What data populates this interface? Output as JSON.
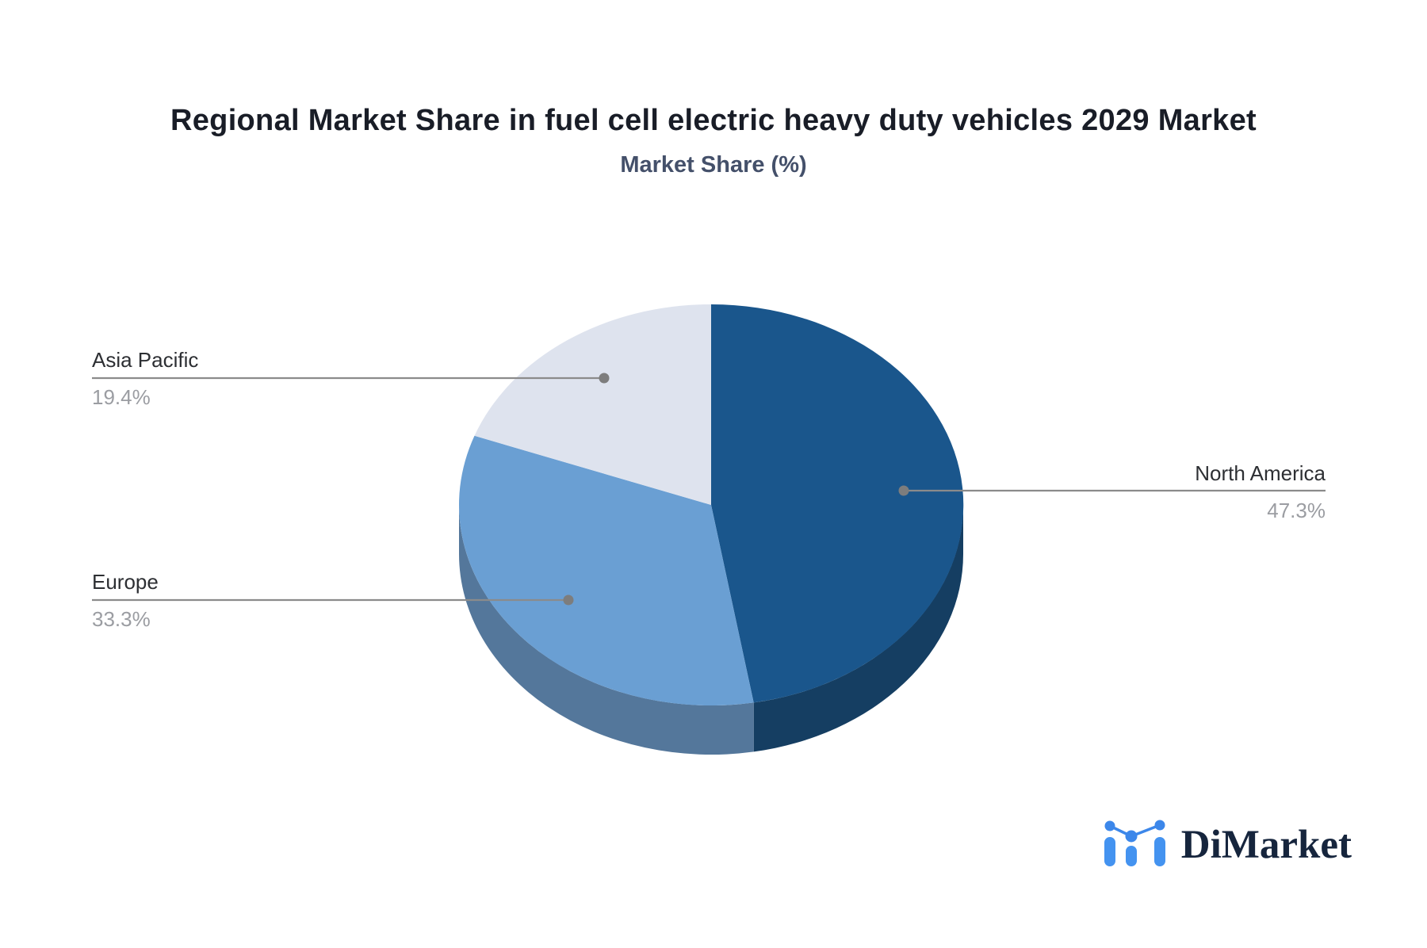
{
  "chart_data": {
    "type": "pie",
    "style": "3d",
    "title": "Regional Market Share in fuel cell electric heavy duty vehicles 2029 Market",
    "subtitle": "Market Share (%)",
    "unit": "%",
    "start_angle": "12-o-clock",
    "direction": "clockwise",
    "legend_position": "none",
    "labeling": "outside-with-leader-lines",
    "slices": [
      {
        "label": "North America",
        "value": 47.3,
        "display": "47.3%",
        "color": "#1a568c",
        "side_color": "#153e62"
      },
      {
        "label": "Europe",
        "value": 33.3,
        "display": "33.3%",
        "color": "#6a9fd3",
        "side_color": "#54779b"
      },
      {
        "label": "Asia Pacific",
        "value": 19.4,
        "display": "19.4%",
        "color": "#dee3ee",
        "side_color": "#bcc5d6"
      }
    ]
  },
  "branding": {
    "logo_text": "DiMarket",
    "logo_icon": "bar-line-chart-icon",
    "logo_accent_color": "#4493f0",
    "logo_text_color": "#16253d"
  },
  "colors": {
    "leader_line": "#8b8b8b",
    "label_text": "#2d2f33",
    "pct_text": "#9b9da2",
    "title_text": "#191d27",
    "subtitle_text": "#44506a",
    "background": "#ffffff"
  }
}
